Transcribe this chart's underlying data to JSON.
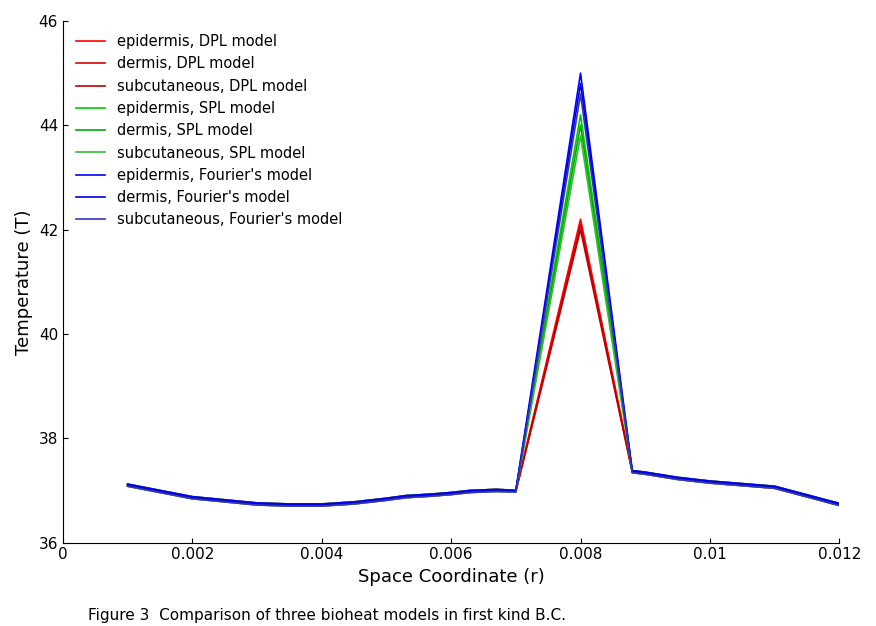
{
  "xlabel": "Space Coordinate (r)",
  "ylabel": "Temperature (T)",
  "xlim": [
    0,
    0.012
  ],
  "ylim": [
    36,
    46
  ],
  "xticks": [
    0,
    0.002,
    0.004,
    0.006,
    0.008,
    0.01,
    0.012
  ],
  "yticks": [
    36,
    38,
    40,
    42,
    44,
    46
  ],
  "caption": "Figure 3  Comparison of three bioheat models in first kind B.C.",
  "lines": [
    {
      "label": "epidermis, DPL model",
      "color": "#ff0000",
      "linewidth": 1.2,
      "x": [
        0.001,
        0.002,
        0.0025,
        0.003,
        0.0035,
        0.004,
        0.0045,
        0.005,
        0.0053,
        0.0057,
        0.006,
        0.0063,
        0.0067,
        0.007,
        0.008,
        0.0088,
        0.009,
        0.0095,
        0.01,
        0.011,
        0.012
      ],
      "y": [
        37.12,
        36.88,
        36.82,
        36.76,
        36.74,
        36.74,
        36.78,
        36.85,
        36.9,
        36.93,
        36.96,
        37.0,
        37.02,
        37.0,
        42.2,
        37.38,
        37.35,
        37.25,
        37.18,
        37.08,
        36.75
      ]
    },
    {
      "label": "dermis, DPL model",
      "color": "#dd0000",
      "linewidth": 1.2,
      "x": [
        0.001,
        0.002,
        0.0025,
        0.003,
        0.0035,
        0.004,
        0.0045,
        0.005,
        0.0053,
        0.0057,
        0.006,
        0.0063,
        0.0067,
        0.007,
        0.008,
        0.0088,
        0.009,
        0.0095,
        0.01,
        0.011,
        0.012
      ],
      "y": [
        37.1,
        36.86,
        36.8,
        36.74,
        36.72,
        36.72,
        36.76,
        36.83,
        36.88,
        36.91,
        36.94,
        36.98,
        37.0,
        36.99,
        42.1,
        37.36,
        37.33,
        37.23,
        37.16,
        37.06,
        36.73
      ]
    },
    {
      "label": "subcutaneous, DPL model",
      "color": "#bb0000",
      "linewidth": 1.2,
      "x": [
        0.001,
        0.002,
        0.0025,
        0.003,
        0.0035,
        0.004,
        0.0045,
        0.005,
        0.0053,
        0.0057,
        0.006,
        0.0063,
        0.0067,
        0.007,
        0.008,
        0.0088,
        0.009,
        0.0095,
        0.01,
        0.011,
        0.012
      ],
      "y": [
        37.08,
        36.84,
        36.78,
        36.72,
        36.7,
        36.7,
        36.74,
        36.81,
        36.86,
        36.89,
        36.92,
        36.96,
        36.98,
        36.97,
        42.0,
        37.34,
        37.31,
        37.21,
        37.14,
        37.04,
        36.71
      ]
    },
    {
      "label": "epidermis, SPL model",
      "color": "#00cc00",
      "linewidth": 1.2,
      "x": [
        0.001,
        0.002,
        0.0025,
        0.003,
        0.0035,
        0.004,
        0.0045,
        0.005,
        0.0053,
        0.0057,
        0.006,
        0.0063,
        0.0067,
        0.007,
        0.008,
        0.0088,
        0.009,
        0.0095,
        0.01,
        0.011,
        0.012
      ],
      "y": [
        37.12,
        36.88,
        36.82,
        36.76,
        36.74,
        36.74,
        36.78,
        36.85,
        36.9,
        36.93,
        36.96,
        37.0,
        37.02,
        37.0,
        44.2,
        37.38,
        37.35,
        37.25,
        37.18,
        37.08,
        36.75
      ]
    },
    {
      "label": "dermis, SPL model",
      "color": "#00aa00",
      "linewidth": 1.2,
      "x": [
        0.001,
        0.002,
        0.0025,
        0.003,
        0.0035,
        0.004,
        0.0045,
        0.005,
        0.0053,
        0.0057,
        0.006,
        0.0063,
        0.0067,
        0.007,
        0.008,
        0.0088,
        0.009,
        0.0095,
        0.01,
        0.011,
        0.012
      ],
      "y": [
        37.1,
        36.86,
        36.8,
        36.74,
        36.72,
        36.72,
        36.76,
        36.83,
        36.88,
        36.91,
        36.94,
        36.98,
        37.0,
        36.99,
        44.0,
        37.36,
        37.33,
        37.23,
        37.16,
        37.06,
        36.73
      ]
    },
    {
      "label": "subcutaneous, SPL model",
      "color": "#33bb33",
      "linewidth": 1.2,
      "x": [
        0.001,
        0.002,
        0.0025,
        0.003,
        0.0035,
        0.004,
        0.0045,
        0.005,
        0.0053,
        0.0057,
        0.006,
        0.0063,
        0.0067,
        0.007,
        0.008,
        0.0088,
        0.009,
        0.0095,
        0.01,
        0.011,
        0.012
      ],
      "y": [
        37.08,
        36.84,
        36.78,
        36.72,
        36.7,
        36.7,
        36.74,
        36.81,
        36.86,
        36.89,
        36.92,
        36.96,
        36.98,
        36.97,
        43.8,
        37.34,
        37.31,
        37.21,
        37.14,
        37.04,
        36.71
      ]
    },
    {
      "label": "epidermis, Fourier's model",
      "color": "#0000ff",
      "linewidth": 1.2,
      "x": [
        0.001,
        0.002,
        0.0025,
        0.003,
        0.0035,
        0.004,
        0.0045,
        0.005,
        0.0053,
        0.0057,
        0.006,
        0.0063,
        0.0067,
        0.007,
        0.008,
        0.0088,
        0.009,
        0.0095,
        0.01,
        0.011,
        0.012
      ],
      "y": [
        37.12,
        36.88,
        36.82,
        36.76,
        36.74,
        36.74,
        36.78,
        36.85,
        36.9,
        36.93,
        36.96,
        37.0,
        37.02,
        37.0,
        45.0,
        37.38,
        37.35,
        37.25,
        37.18,
        37.08,
        36.75
      ]
    },
    {
      "label": "dermis, Fourier's model",
      "color": "#0000dd",
      "linewidth": 1.2,
      "x": [
        0.001,
        0.002,
        0.0025,
        0.003,
        0.0035,
        0.004,
        0.0045,
        0.005,
        0.0053,
        0.0057,
        0.006,
        0.0063,
        0.0067,
        0.007,
        0.008,
        0.0088,
        0.009,
        0.0095,
        0.01,
        0.011,
        0.012
      ],
      "y": [
        37.1,
        36.86,
        36.8,
        36.74,
        36.72,
        36.72,
        36.76,
        36.83,
        36.88,
        36.91,
        36.94,
        36.98,
        37.0,
        36.99,
        44.8,
        37.36,
        37.33,
        37.23,
        37.16,
        37.06,
        36.73
      ]
    },
    {
      "label": "subcutaneous, Fourier's model",
      "color": "#3333bb",
      "linewidth": 1.2,
      "x": [
        0.001,
        0.002,
        0.0025,
        0.003,
        0.0035,
        0.004,
        0.0045,
        0.005,
        0.0053,
        0.0057,
        0.006,
        0.0063,
        0.0067,
        0.007,
        0.008,
        0.0088,
        0.009,
        0.0095,
        0.01,
        0.011,
        0.012
      ],
      "y": [
        37.08,
        36.84,
        36.78,
        36.72,
        36.7,
        36.7,
        36.74,
        36.81,
        36.86,
        36.89,
        36.92,
        36.96,
        36.98,
        36.97,
        44.6,
        37.34,
        37.31,
        37.21,
        37.14,
        37.04,
        36.71
      ]
    }
  ],
  "legend_loc": "upper left",
  "legend_fontsize": 10.5,
  "axis_fontsize": 13,
  "tick_fontsize": 11,
  "background_color": "#ffffff"
}
